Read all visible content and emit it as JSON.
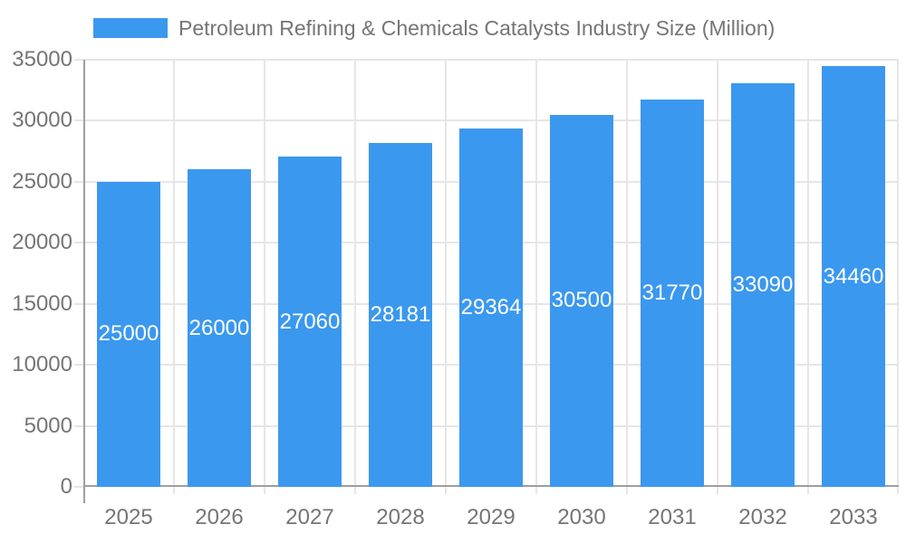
{
  "chart_data": {
    "type": "bar",
    "title": "Petroleum Refining & Chemicals Catalysts Industry Size (Million)",
    "series_name": "Petroleum Refining & Chemicals Catalysts Industry Size (Million)",
    "categories": [
      "2025",
      "2026",
      "2027",
      "2028",
      "2029",
      "2030",
      "2031",
      "2032",
      "2033"
    ],
    "values": [
      25000,
      26000,
      27060,
      28181,
      29364,
      30500,
      31770,
      33090,
      34460
    ],
    "value_labels": [
      "25000",
      "26000",
      "27060",
      "28181",
      "29364",
      "30500",
      "31770",
      "33090",
      "34460"
    ],
    "xlabel": "",
    "ylabel": "",
    "ylim": [
      0,
      35000
    ],
    "ytick_interval": 5000,
    "ytick_labels": [
      "0",
      "5000",
      "10000",
      "15000",
      "20000",
      "25000",
      "30000",
      "35000"
    ],
    "grid": true,
    "legend_position": "top-left",
    "colors": {
      "bar": "#3b98ef",
      "value_label": "#ffffff",
      "axis_text": "#757575",
      "gridline": "#e6e6e6",
      "axis_line": "#9e9e9e"
    }
  }
}
